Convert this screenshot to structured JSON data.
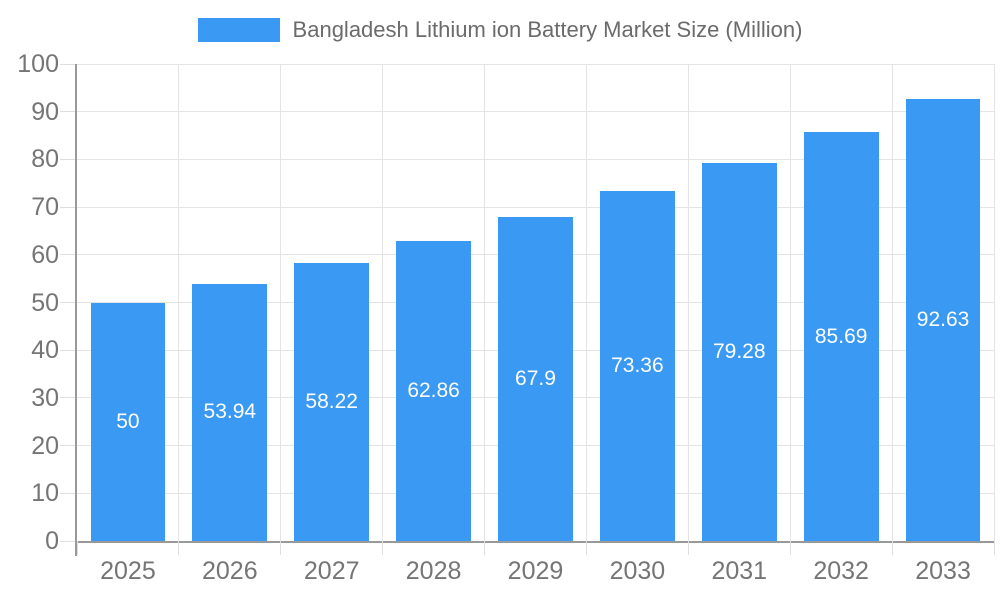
{
  "legend": {
    "label": "Bangladesh Lithium ion Battery Market Size (Million)",
    "swatch_color": "#3a99f2"
  },
  "chart_data": {
    "type": "bar",
    "title": "Bangladesh Lithium ion Battery Market Size (Million)",
    "categories": [
      "2025",
      "2026",
      "2027",
      "2028",
      "2029",
      "2030",
      "2031",
      "2032",
      "2033"
    ],
    "values": [
      50,
      53.94,
      58.22,
      62.86,
      67.9,
      73.36,
      79.28,
      85.69,
      92.63
    ],
    "value_labels": [
      "50",
      "53.94",
      "58.22",
      "62.86",
      "67.9",
      "73.36",
      "79.28",
      "85.69",
      "92.63"
    ],
    "xlabel": "",
    "ylabel": "",
    "ylim": [
      0,
      100
    ],
    "yticks": [
      0,
      10,
      20,
      30,
      40,
      50,
      60,
      70,
      80,
      90,
      100
    ],
    "grid": true,
    "legend_position": "top",
    "colors": {
      "bar": "#3a99f2",
      "value_label": "#ffffff",
      "axis_line": "#999999",
      "grid_line": "#e4e4e4",
      "axis_text": "#757575",
      "legend_text": "#6b6b6b",
      "background": "#ffffff"
    }
  }
}
